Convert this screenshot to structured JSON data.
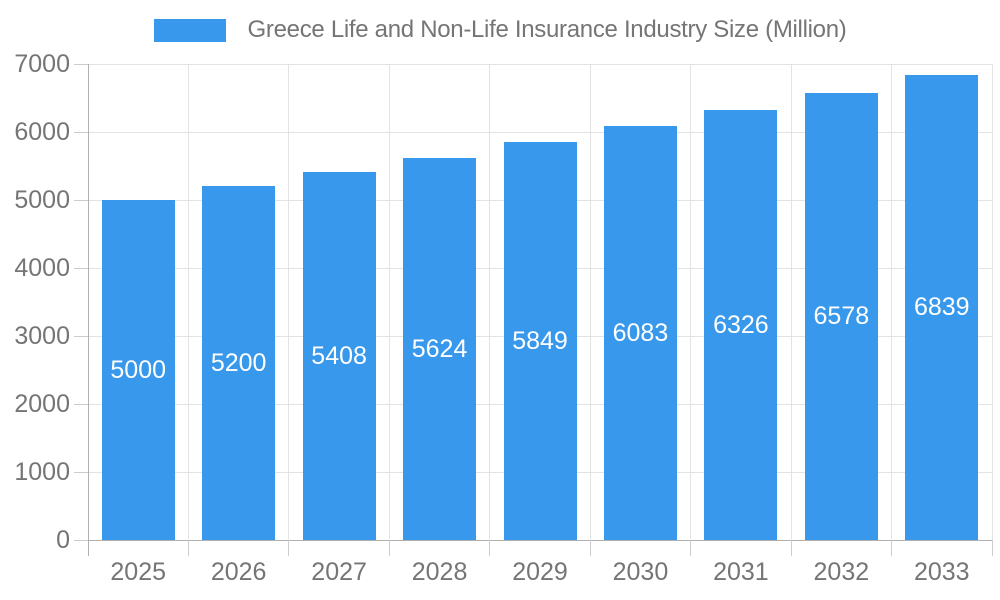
{
  "chart_data": {
    "type": "bar",
    "title": "Greece Life and Non-Life Insurance Industry Size (Million)",
    "categories": [
      "2025",
      "2026",
      "2027",
      "2028",
      "2029",
      "2030",
      "2031",
      "2032",
      "2033"
    ],
    "values": [
      5000,
      5200,
      5408,
      5624,
      5849,
      6083,
      6326,
      6578,
      6839
    ],
    "series": [
      {
        "name": "Greece Life and Non-Life Insurance Industry Size (Million)",
        "values": [
          5000,
          5200,
          5408,
          5624,
          5849,
          6083,
          6326,
          6578,
          6839
        ]
      }
    ],
    "xlabel": "",
    "ylabel": "",
    "ylim": [
      0,
      7000
    ],
    "yticks": [
      0,
      1000,
      2000,
      3000,
      4000,
      5000,
      6000,
      7000
    ],
    "grid": true,
    "legend_position": "top-center",
    "bar_value_labels": "inside-middle",
    "colors": {
      "bar": "#3899ec",
      "bar_label": "#ffffff",
      "axis_text": "#757575",
      "grid_line": "#e3e3e3",
      "axis_line": "#b1b1b1",
      "tick_line": "#cccccc",
      "background": "#ffffff"
    }
  }
}
